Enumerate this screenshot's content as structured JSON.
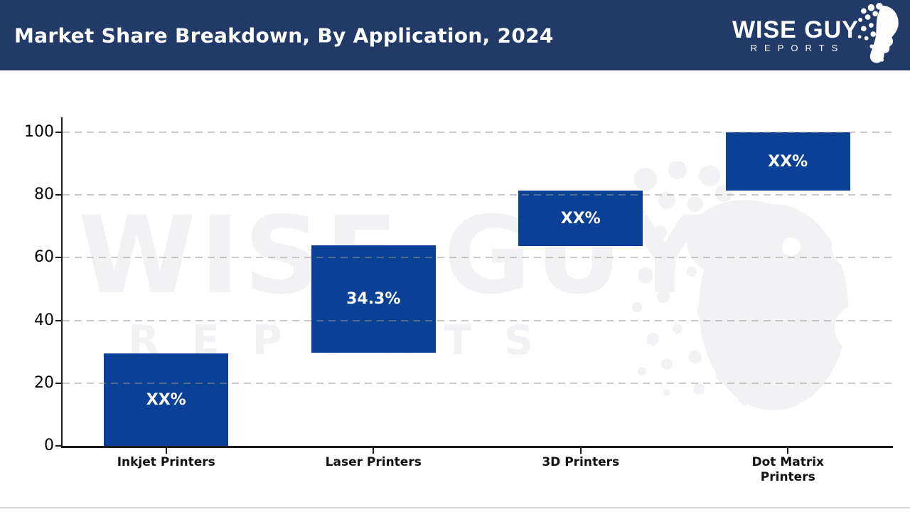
{
  "header": {
    "title": "Market Share Breakdown, By Application, 2024",
    "bg_color": "#213a67",
    "logo": {
      "line1": "WISE GUY",
      "line2": "REPORTS"
    }
  },
  "watermark": {
    "line1": "WISE GUY",
    "line2": "REPORTS",
    "color": "#f2f2f4"
  },
  "chart_data": {
    "type": "bar",
    "subtype": "floating-waterfall",
    "title": "Market Share Breakdown, By Application, 2024",
    "categories": [
      "Inkjet Printers",
      "Laser Printers",
      "3D Printers",
      "Dot Matrix Printers"
    ],
    "segments": [
      {
        "category": "Inkjet Printers",
        "start": 0,
        "end": 29.4,
        "label": "XX%"
      },
      {
        "category": "Laser Printers",
        "start": 29.6,
        "end": 63.9,
        "label": "34.3%"
      },
      {
        "category": "3D Printers",
        "start": 63.7,
        "end": 81.4,
        "label": "XX%"
      },
      {
        "category": "Dot Matrix Printers",
        "start": 81.4,
        "end": 100,
        "label": "XX%"
      }
    ],
    "yticks": [
      0,
      20,
      40,
      60,
      80,
      100
    ],
    "ylim": [
      0,
      100
    ],
    "xlabel": "",
    "ylabel": "",
    "bar_width_fraction": 0.6,
    "bar_color": "#0a4096",
    "bar_label_color": "#ffffff",
    "grid": "dashed-horizontal",
    "grid_color": "#c9c9c9",
    "axis_color": "#1a1a1a",
    "legend": "none"
  }
}
